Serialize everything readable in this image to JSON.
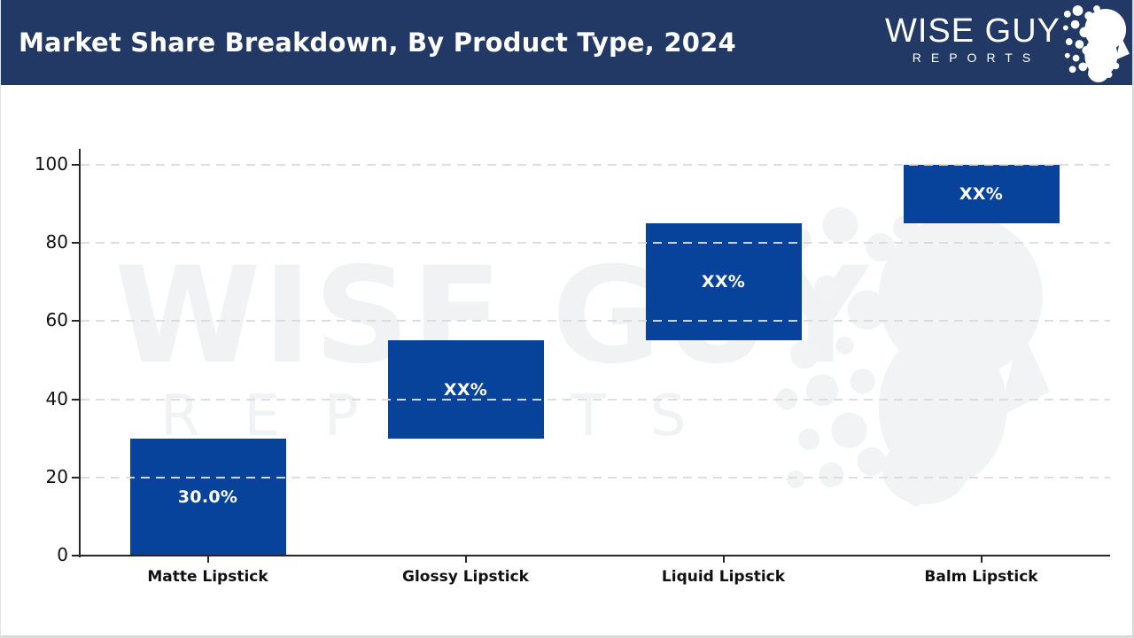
{
  "header": {
    "title": "Market Share Breakdown, By Product Type, 2024",
    "logo": {
      "line1": "WISE GUY",
      "line2": "REPORTS"
    }
  },
  "watermark": {
    "line1": "WISE GUY",
    "line2": "REPORTS"
  },
  "chart_data": {
    "type": "bar",
    "subtype": "waterfall",
    "title": "Market Share Breakdown, By Product Type, 2024",
    "categories": [
      "Matte Lipstick",
      "Glossy Lipstick",
      "Liquid Lipstick",
      "Balm Lipstick"
    ],
    "series": [
      {
        "name": "Market Share",
        "segments": [
          {
            "category": "Matte Lipstick",
            "start": 0,
            "end": 30,
            "value": 30,
            "label": "30.0%"
          },
          {
            "category": "Glossy Lipstick",
            "start": 30,
            "end": 55,
            "value": 25,
            "label": "XX%"
          },
          {
            "category": "Liquid Lipstick",
            "start": 55,
            "end": 85,
            "value": 30,
            "label": "XX%"
          },
          {
            "category": "Balm Lipstick",
            "start": 85,
            "end": 100,
            "value": 15,
            "label": "XX%"
          }
        ]
      }
    ],
    "xlabel": "",
    "ylabel": "",
    "ylim": [
      0,
      100
    ],
    "yticks": [
      0,
      20,
      40,
      60,
      80,
      100
    ],
    "grid": "horizontal-dashed",
    "legend": "none"
  },
  "colors": {
    "header_bg": "#223965",
    "bar_fill": "#08439B",
    "axis": "#262626",
    "gridline": "#dcdcde",
    "watermark": "#f1f2f4",
    "bar_label_text": "#ffffff",
    "tick_text": "#111111"
  }
}
